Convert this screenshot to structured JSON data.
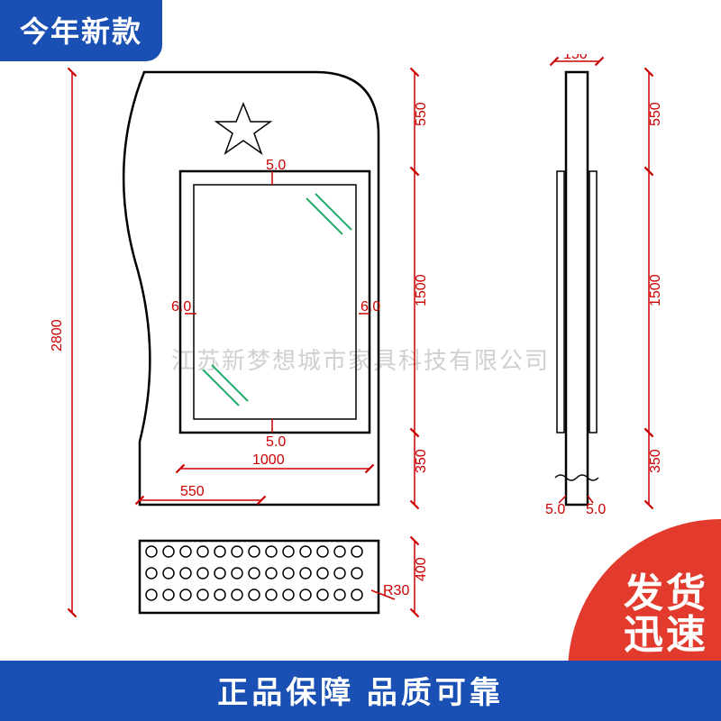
{
  "badges": {
    "top_left": "今年新款",
    "bottom_right_line1": "发货",
    "bottom_right_line2": "迅速",
    "footer": "正品保障  品质可靠"
  },
  "watermark": "江苏新梦想城市家具科技有限公司",
  "colors": {
    "badge_blue": "#1a4fb3",
    "badge_red": "#e23b2e",
    "dim_red": "#c00000",
    "line_black": "#000000",
    "glass_slash": "#22aa66",
    "background": "#ffffff"
  },
  "front_view": {
    "overall_height": "2800",
    "top_section_h": "550",
    "panel_h": "1500",
    "gap_h": "350",
    "base_h": "400",
    "panel_w": "1000",
    "flag_w": "550",
    "panel_frame": "5.0",
    "stud_left": "6.0",
    "stud_right": "6.0",
    "base_top": "5.0",
    "hole_r": "R30",
    "base_grid": {
      "rows": 3,
      "cols": 13
    }
  },
  "side_view": {
    "top_w": "150",
    "top_section_h": "550",
    "panel_h": "1500",
    "gap_h": "350",
    "stud_a": "5.0",
    "stud_b": "5.0"
  },
  "styling": {
    "dim_fontsize": 16,
    "line_width_thin": 1.5,
    "line_width_med": 2.5
  }
}
